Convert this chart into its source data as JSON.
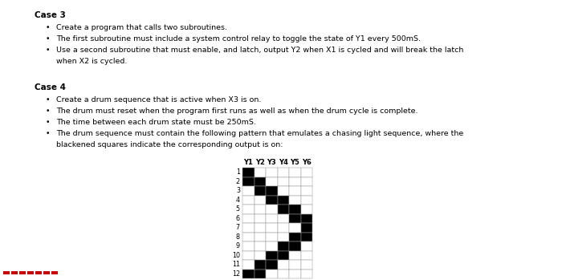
{
  "case3_title": "Case 3",
  "case3_bullets": [
    "Create a program that calls two subroutines.",
    "The first subroutine must include a system control relay to toggle the state of Y1 every 500mS.",
    "Use a second subroutine that must enable, and latch, output Y2 when X1 is cycled and will break the latch\nwhen X2 is cycled."
  ],
  "case4_title": "Case 4",
  "case4_bullets": [
    "Create a drum sequence that is active when X3 is on.",
    "The drum must reset when the program first runs as well as when the drum cycle is complete.",
    "The time between each drum state must be 250mS.",
    "The drum sequence must contain the following pattern that emulates a chasing light sequence, where the\nblackened squares indicate the corresponding output is on:"
  ],
  "grid_columns": [
    "Y1",
    "Y2",
    "Y3",
    "Y4",
    "Y5",
    "Y6"
  ],
  "grid_rows": 12,
  "grid_pattern": [
    [
      1,
      0,
      0,
      0,
      0,
      0
    ],
    [
      1,
      1,
      0,
      0,
      0,
      0
    ],
    [
      0,
      1,
      1,
      0,
      0,
      0
    ],
    [
      0,
      0,
      1,
      1,
      0,
      0
    ],
    [
      0,
      0,
      0,
      1,
      1,
      0
    ],
    [
      0,
      0,
      0,
      0,
      1,
      1
    ],
    [
      0,
      0,
      0,
      0,
      0,
      1
    ],
    [
      0,
      0,
      0,
      0,
      1,
      1
    ],
    [
      0,
      0,
      0,
      1,
      1,
      0
    ],
    [
      0,
      0,
      1,
      1,
      0,
      0
    ],
    [
      0,
      1,
      1,
      0,
      0,
      0
    ],
    [
      1,
      1,
      0,
      0,
      0,
      0
    ]
  ],
  "bg_color": "#ffffff",
  "text_color": "#000000",
  "grid_line_color": "#999999",
  "filled_color": "#000000",
  "title_fontsize": 7.5,
  "body_fontsize": 6.8,
  "grid_header_fontsize": 6.0,
  "grid_row_fontsize": 5.8,
  "bullet_char": "•",
  "dash_color": "#333333"
}
